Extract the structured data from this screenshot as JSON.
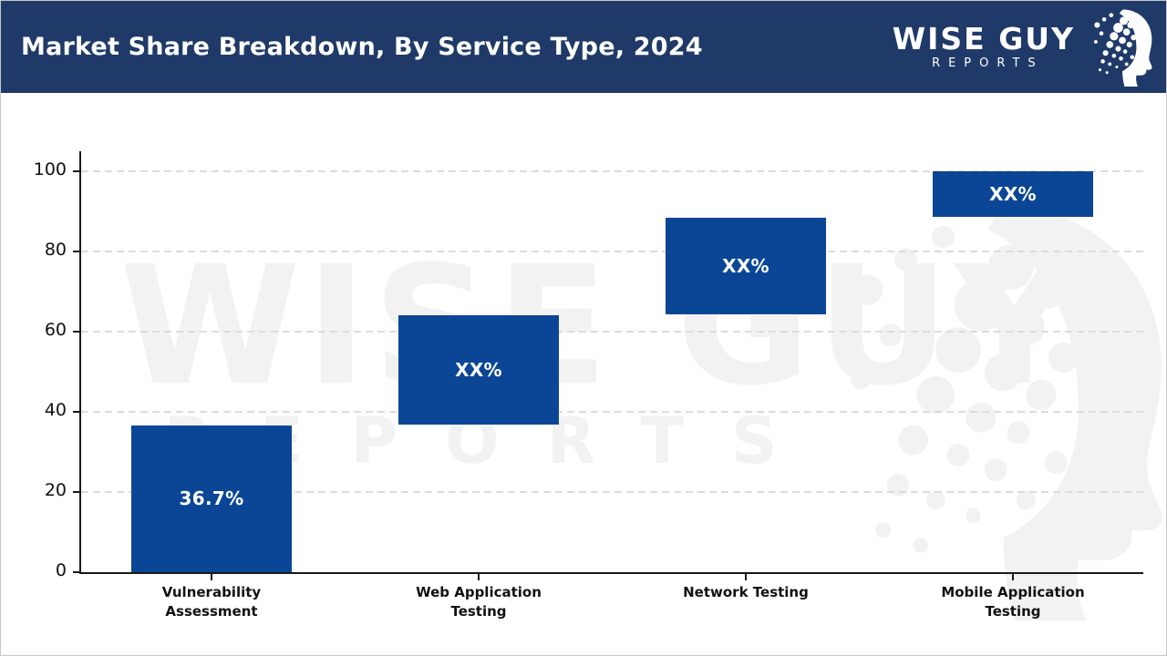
{
  "header": {
    "title": "Market Share Breakdown, By Service Type, 2024",
    "logo": {
      "wordmark": "WISE GUY",
      "subtext": "REPORTS"
    }
  },
  "watermark": {
    "wordmark": "WISE GUY",
    "subtext": "REPORTS"
  },
  "colors": {
    "header_bg": "#1f3a68",
    "header_text": "#ffffff",
    "bar_fill": "#0a4695",
    "bar_label": "#ffffff",
    "gridline": "#dcdcdc",
    "axis": "#1a1a1a",
    "tick_label": "#111111",
    "watermark": "#f2f2f2",
    "canvas_border": "#c9c9c9",
    "background": "#ffffff"
  },
  "chart_data": {
    "type": "bar",
    "subtype": "waterfall-stacked-breakdown",
    "title": "Market Share Breakdown, By Service Type, 2024",
    "xlabel": "",
    "ylabel": "",
    "unit": "%",
    "ylim": [
      0,
      105
    ],
    "yticks": [
      0,
      20,
      40,
      60,
      80,
      100
    ],
    "grid": "dashed-horizontal",
    "legend": "none",
    "categories": [
      "Vulnerability Assessment",
      "Web Application Testing",
      "Network Testing",
      "Mobile Application Testing"
    ],
    "category_label_lines": [
      [
        "Vulnerability",
        "Assessment"
      ],
      [
        "Web Application",
        "Testing"
      ],
      [
        "Network Testing"
      ],
      [
        "Mobile Application",
        "Testing"
      ]
    ],
    "segments": [
      {
        "category": "Vulnerability Assessment",
        "start": 0,
        "end": 36.7,
        "value": 36.7,
        "label": "36.7%"
      },
      {
        "category": "Web Application Testing",
        "start": 36.8,
        "end": 64.1,
        "value": 27.3,
        "label": "XX%"
      },
      {
        "category": "Network Testing",
        "start": 64.4,
        "end": 88.4,
        "value": 24.0,
        "label": "XX%"
      },
      {
        "category": "Mobile Application Testing",
        "start": 88.6,
        "end": 100,
        "value": 11.4,
        "label": "XX%"
      }
    ]
  }
}
